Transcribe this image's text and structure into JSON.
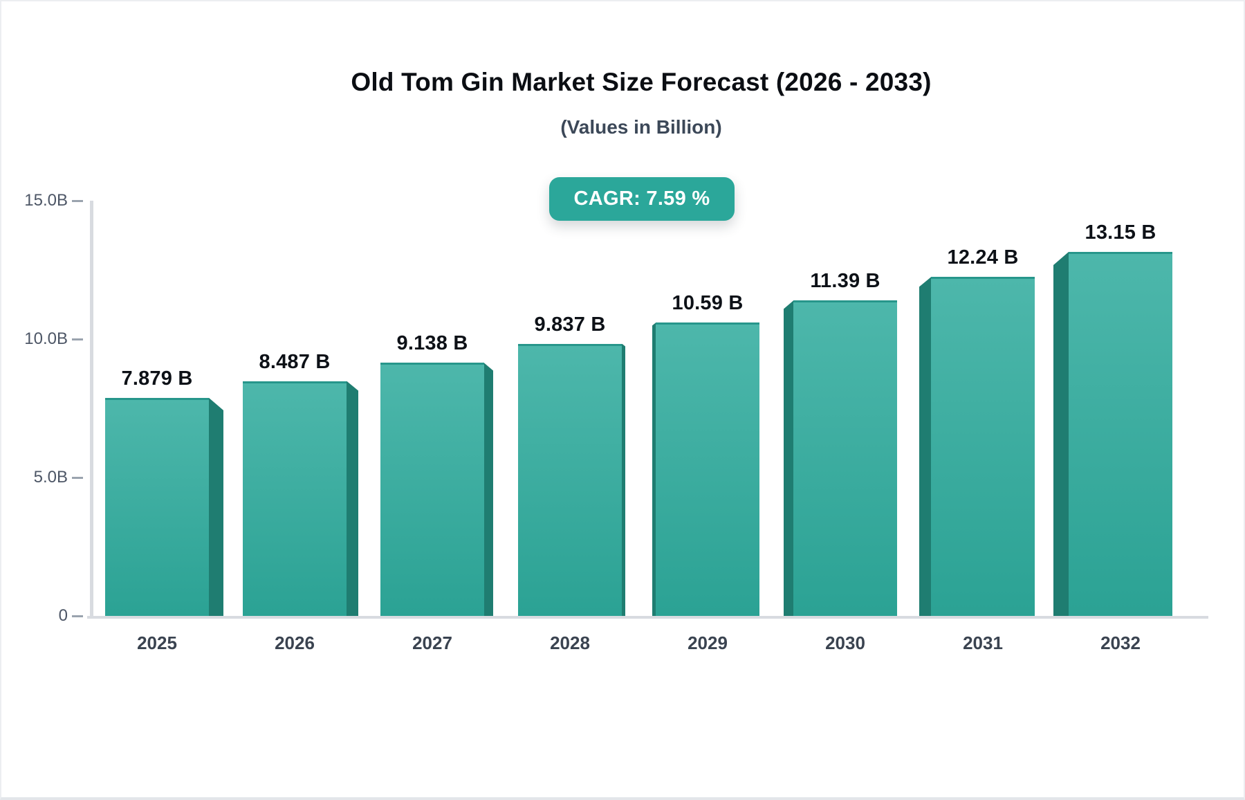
{
  "page": {
    "title": "Old Tom Gin Market Size Forecast (2026 - 2033)",
    "subtitle": "(Values in Billion)",
    "cagr_badge": "CAGR: 7.59 %"
  },
  "chart_data": {
    "type": "bar",
    "title": "Old Tom Gin Market Size Forecast (2026 - 2033)",
    "subtitle": "(Values in Billion)",
    "cagr_label": "CAGR: 7.59 %",
    "categories": [
      "2025",
      "2026",
      "2027",
      "2028",
      "2029",
      "2030",
      "2031",
      "2032"
    ],
    "values": [
      7.879,
      8.487,
      9.138,
      9.837,
      10.59,
      11.39,
      12.24,
      13.15
    ],
    "value_labels": [
      "7.879 B",
      "8.487 B",
      "9.138 B",
      "9.837 B",
      "10.59 B",
      "11.39 B",
      "12.24 B",
      "13.15 B"
    ],
    "unit": "Billion",
    "xlabel": "",
    "ylabel": "",
    "ylim": [
      0,
      15
    ],
    "grid": false,
    "legend": false,
    "yticks": [
      {
        "value": 15,
        "label": "15.0B"
      },
      {
        "value": 10,
        "label": "10.0B"
      },
      {
        "value": 5,
        "label": "5.0B"
      },
      {
        "value": 0,
        "label": "0"
      }
    ],
    "colors": {
      "bar_gradient_top": "#4db7ab",
      "bar_gradient_bottom": "#2ba294",
      "bar_top_edge": "#27968b",
      "bar_side_3d": "#1f7d71",
      "badge_background": "#2ba79a",
      "badge_text": "#ffffff",
      "axis_line": "#d8dbe0",
      "tick_dash": "#9aa3ae",
      "tick_label_text": "#4d5666",
      "category_label_text": "#3a4350",
      "value_label_text": "#0d1117",
      "title_text": "#0b0e13",
      "subtitle_text": "#3c4858"
    }
  }
}
